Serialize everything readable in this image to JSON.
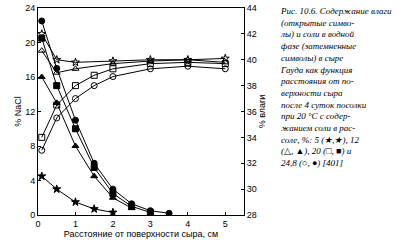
{
  "chart_data": {
    "type": "line",
    "xlabel": "Расстояние от поверхности сыра, см",
    "ylabel": "% NaCl",
    "y2label": "% влаги",
    "annotations": [
      "Рис. 10.6. Содержание влаги",
      "(открытые симво-",
      "лы) и соли в водной",
      "фазе (затемненные",
      "символы) в сыре",
      "Гауда как функция",
      "расстояния от по-",
      "верхности сыра",
      "после 4 суток посолки",
      "при 20 °C с содер-",
      "жанием соли в рас-",
      "соле, %: 5 (★,★), 12",
      "(△, ▲), 20 (□, ■) и",
      "24,8 (○, ●) [401]"
    ],
    "xlim": [
      0,
      5.5
    ],
    "xticks": [
      0,
      1,
      2,
      3,
      4,
      5
    ],
    "ylim": [
      0,
      24
    ],
    "yticks": [
      0,
      4,
      8,
      12,
      16,
      20,
      24
    ],
    "y2lim": [
      28,
      44
    ],
    "y2ticks": [
      28,
      30,
      32,
      34,
      36,
      38,
      40,
      42,
      44
    ],
    "grid": false,
    "series": [
      {
        "color": "#000000",
        "marker": "circle",
        "line_style": "solid",
        "x": [
          0.1,
          0.5,
          1.0,
          1.5,
          2.0,
          2.5,
          3.0,
          3.5
        ],
        "values": [
          22.5,
          17,
          11,
          6,
          3,
          1.3,
          0.5,
          0.2
        ]
      },
      {
        "color": "#000000",
        "marker": "square",
        "line_style": "solid",
        "x": [
          0.1,
          0.5,
          1.0,
          1.5,
          2.0,
          2.5,
          3.0
        ],
        "values": [
          20.5,
          15,
          10,
          5.5,
          2.5,
          1,
          0.3
        ]
      },
      {
        "color": "#000000",
        "marker": "triangle-up",
        "line_style": "solid",
        "x": [
          0.1,
          0.5,
          1.0,
          1.5,
          2.0,
          2.5
        ],
        "values": [
          16,
          13,
          8,
          4.5,
          2,
          0.8
        ]
      },
      {
        "color": "#000000",
        "marker": "star",
        "line_style": "solid",
        "x": [
          0.1,
          0.5,
          1.0,
          1.5,
          2.0
        ],
        "values": [
          4.5,
          3,
          1.5,
          0.7,
          0.3
        ]
      },
      {
        "color": "#000000",
        "marker": "circle-open",
        "line_style": "solid",
        "axis": "y2",
        "x": [
          0.1,
          0.5,
          1.0,
          1.5,
          2.0,
          3.0,
          4.0,
          5.0
        ],
        "values": [
          33,
          35.5,
          37,
          38,
          38.7,
          39.3,
          39.5,
          39.3
        ]
      },
      {
        "color": "#000000",
        "marker": "square-open",
        "line_style": "solid",
        "axis": "y2",
        "x": [
          0.1,
          0.5,
          1.0,
          1.5,
          2.0,
          3.0,
          4.0,
          5.0
        ],
        "values": [
          34,
          36.5,
          38,
          38.8,
          39.3,
          39.7,
          39.8,
          39.7
        ]
      },
      {
        "color": "#000000",
        "marker": "triangle-up-open",
        "line_style": "solid",
        "axis": "y2",
        "x": [
          0.1,
          0.5,
          1.0,
          2.0,
          3.0,
          4.0,
          5.0
        ],
        "values": [
          40.7,
          39.0,
          39.3,
          39.7,
          39.9,
          40.0,
          39.8
        ]
      },
      {
        "color": "#000000",
        "marker": "star-open",
        "line_style": "solid",
        "axis": "y2",
        "x": [
          0.1,
          0.5,
          1.0,
          2.0,
          3.0,
          4.0,
          5.0
        ],
        "values": [
          42,
          40.0,
          39.8,
          39.9,
          40.0,
          40.0,
          40.1
        ]
      }
    ]
  }
}
